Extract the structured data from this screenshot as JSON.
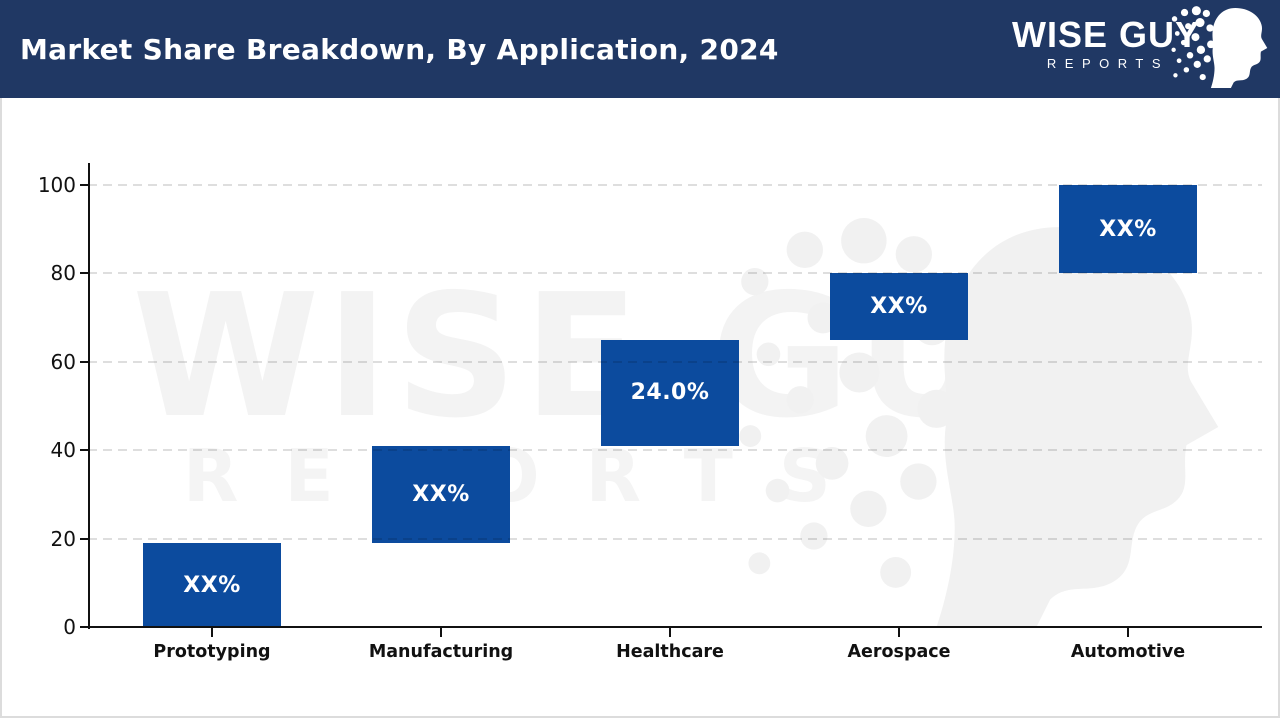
{
  "header": {
    "title": "Market Share Breakdown, By Application, 2024",
    "brand": {
      "name": "WISE GUY",
      "subtitle": "REPORTS"
    }
  },
  "watermark": {
    "line1": "WISE GUY",
    "line2": "REPORTS"
  },
  "chart_data": {
    "type": "bar",
    "subtype": "floating-waterfall-segments",
    "title": "Market Share Breakdown, By Application, 2024",
    "categories": [
      "Prototyping",
      "Manufacturing",
      "Healthcare",
      "Aerospace",
      "Automotive"
    ],
    "segments": [
      {
        "category": "Prototyping",
        "start": 0,
        "end": 19,
        "value_label": "XX%"
      },
      {
        "category": "Manufacturing",
        "start": 19,
        "end": 41,
        "value_label": "XX%"
      },
      {
        "category": "Healthcare",
        "start": 41,
        "end": 65,
        "value_label": "24.0%"
      },
      {
        "category": "Aerospace",
        "start": 65,
        "end": 80,
        "value_label": "XX%"
      },
      {
        "category": "Automotive",
        "start": 80,
        "end": 100,
        "value_label": "XX%"
      }
    ],
    "y_ticks": [
      0,
      20,
      40,
      60,
      80,
      100
    ],
    "ylim": [
      0,
      105
    ],
    "xlabel": "",
    "ylabel": "",
    "grid": "horizontal-dashed",
    "legend": "none",
    "colors": {
      "bar": "#0C4B9E",
      "bar_label": "#FFFFFF",
      "axis": "#111111",
      "header_bg": "#203864",
      "watermark": "#F3F3F3"
    }
  }
}
